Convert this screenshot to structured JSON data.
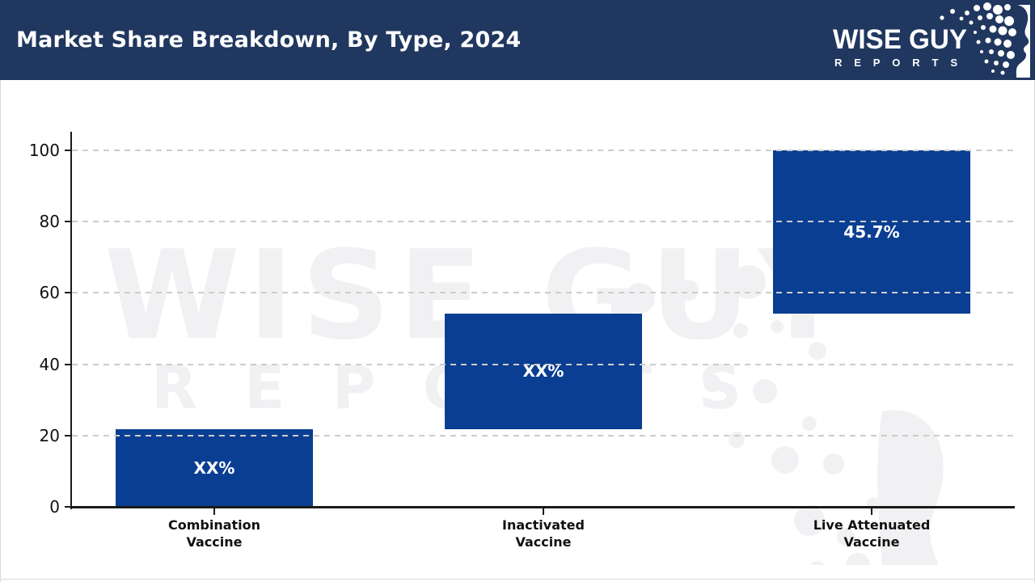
{
  "header": {
    "title": "Market Share Breakdown, By Type, 2024",
    "logo": {
      "name": "WISE GUY REPORTS",
      "line1": "WISE GUY",
      "line2": "REPORTS"
    }
  },
  "watermark": {
    "line1": "WISE GUY",
    "line2": "REPORTS"
  },
  "colors": {
    "header_bg": "#20375F",
    "title_text": "#FFFFFF",
    "bar_fill": "#0A3E92",
    "bar_label_text": "#FFFFFF",
    "gridline": "#CCCCCC",
    "axis": "#1A1A1A",
    "watermark": "#F1F1F4",
    "chart_bg": "#FFFFFF",
    "border": "#DBDBDB"
  },
  "chart_data": {
    "type": "bar",
    "subtype": "stacked-waterfall-percent",
    "title": "Market Share Breakdown, By Type, 2024",
    "xlabel": "",
    "ylabel": "",
    "ylim": [
      0,
      105
    ],
    "y_ticks": [
      0,
      20,
      40,
      60,
      80,
      100
    ],
    "grid": "horizontal-dashed",
    "legend": "none",
    "categories": [
      {
        "line1": "Combination",
        "line2": "Vaccine"
      },
      {
        "line1": "Inactivated",
        "line2": "Vaccine"
      },
      {
        "line1": "Live Attenuated",
        "line2": "Vaccine"
      }
    ],
    "segments": [
      {
        "category": "Combination Vaccine",
        "start": 0,
        "end": 21.8,
        "span": 21.8,
        "value_label": "XX%"
      },
      {
        "category": "Inactivated Vaccine",
        "start": 21.8,
        "end": 54.3,
        "span": 32.5,
        "value_label": "XX%"
      },
      {
        "category": "Live Attenuated Vaccine",
        "start": 54.3,
        "end": 100,
        "span": 45.7,
        "value_label": "45.7%"
      }
    ]
  }
}
